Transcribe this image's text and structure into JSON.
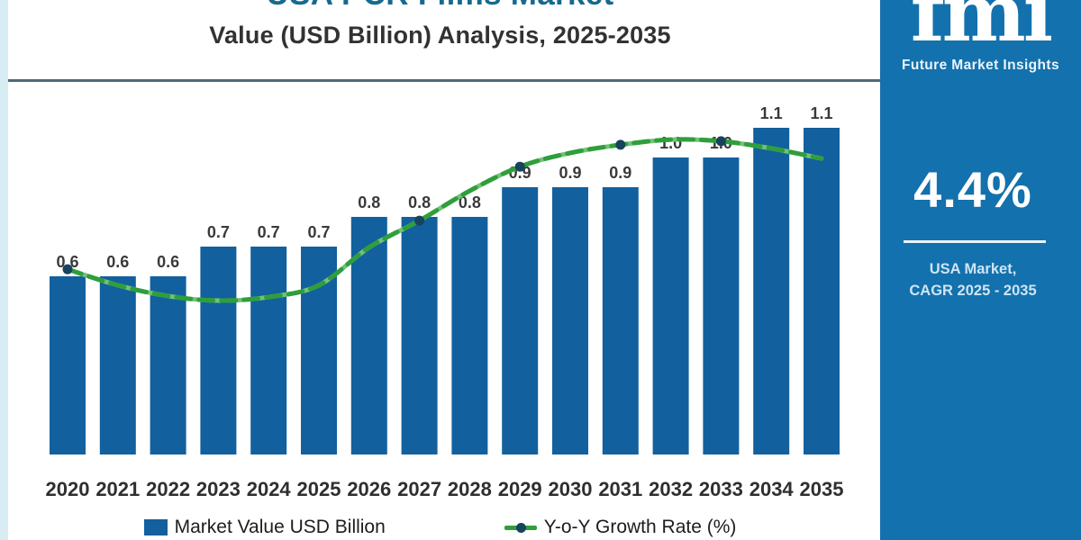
{
  "header": {
    "title": "USA PCR Films Market",
    "subtitle": "Value (USD Billion) Analysis, 2025-2035"
  },
  "sidebar": {
    "logo_text": "fmi",
    "logo_reg": "®",
    "logo_subtitle": "Future Market Insights",
    "cagr_value": "4.4%",
    "cagr_label_line1": "USA Market,",
    "cagr_label_line2": "CAGR 2025 - 2035",
    "bg_color": "#1371ad"
  },
  "legend": [
    {
      "label": "Market Value USD Billion",
      "swatch": "bar-square",
      "color": "#12609e"
    },
    {
      "label": "Y-o-Y Growth Rate (%)",
      "swatch": "line-with-dot",
      "color": "#2f9e3c",
      "dot_color": "#17435c"
    }
  ],
  "chart_data": {
    "type": "bar",
    "combo": "bar+line",
    "title": "USA PCR Films Market",
    "subtitle": "Value (USD Billion) Analysis, 2025-2035",
    "categories": [
      "2020",
      "2021",
      "2022",
      "2023",
      "2024",
      "2025",
      "2026",
      "2027",
      "2028",
      "2029",
      "2030",
      "2031",
      "2032",
      "2033",
      "2034",
      "2035"
    ],
    "series": [
      {
        "name": "Market Value USD Billion",
        "type": "bar",
        "color": "#12609e",
        "values": [
          0.6,
          0.6,
          0.6,
          0.7,
          0.7,
          0.7,
          0.8,
          0.8,
          0.8,
          0.9,
          0.9,
          0.9,
          1.0,
          1.0,
          1.1,
          1.1
        ],
        "value_labels": [
          "0.6",
          "0.6",
          "0.6",
          "0.7",
          "0.7",
          "0.7",
          "0.8",
          "0.8",
          "0.8",
          "0.9",
          "0.9",
          "0.9",
          "1.0",
          "1.0",
          "1.1",
          "1.1"
        ]
      },
      {
        "name": "Y-o-Y Growth Rate (%)",
        "type": "line",
        "color": "#2f9e3c",
        "marker_color": "#17435c",
        "axis_labels_visible": false,
        "norm_values_est": [
          0.567,
          0.518,
          0.485,
          0.471,
          0.482,
          0.518,
          0.634,
          0.716,
          0.807,
          0.881,
          0.923,
          0.948,
          0.964,
          0.959,
          0.937,
          0.906
        ],
        "marker_indices": [
          0,
          7,
          9,
          11,
          13
        ]
      }
    ],
    "ylim": [
      0,
      1.1
    ],
    "grid": false,
    "legend_position": "bottom"
  }
}
